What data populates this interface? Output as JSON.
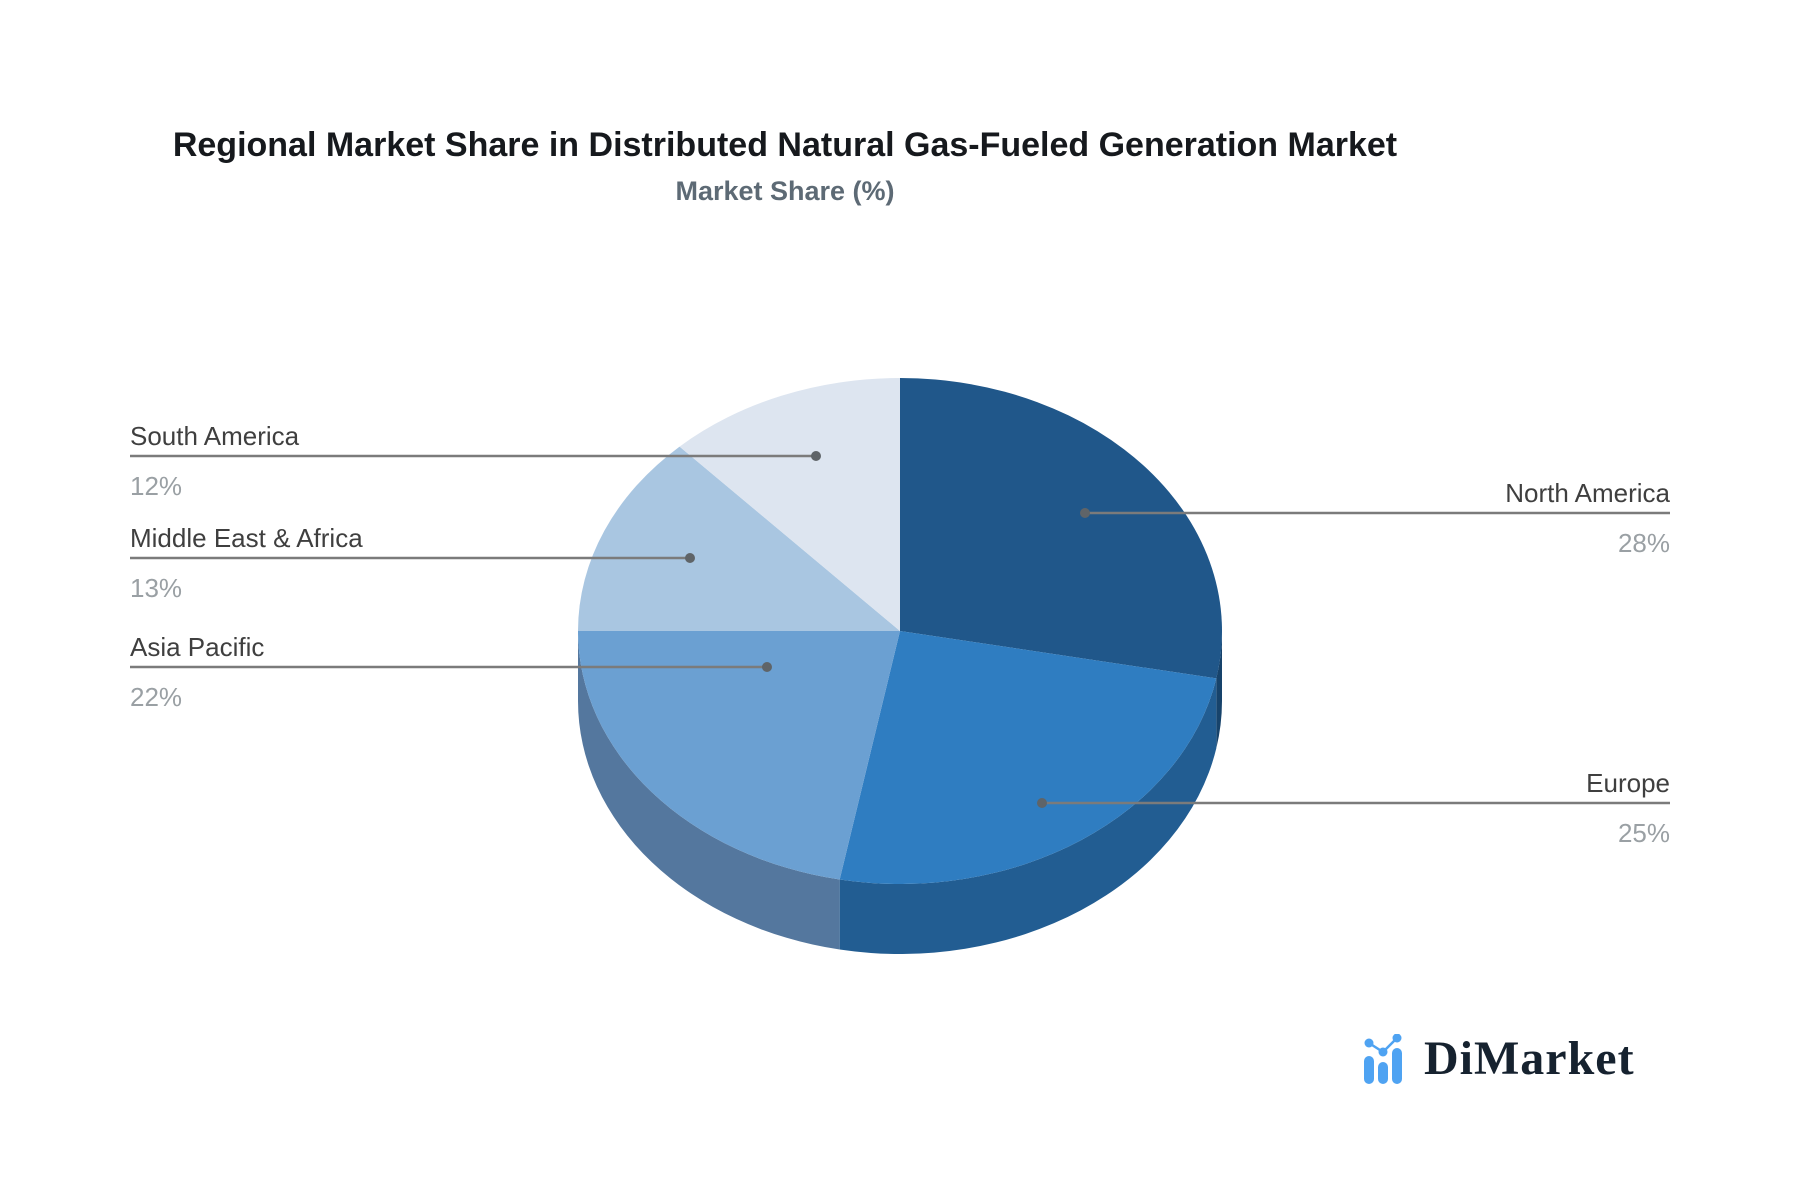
{
  "title": "Regional Market Share in Distributed Natural Gas-Fueled Generation Market",
  "subtitle": "Market Share (%)",
  "logo": {
    "text": "DiMarket"
  },
  "chart_data": {
    "type": "pie",
    "title": "Regional Market Share in Distributed Natural Gas-Fueled Generation Market",
    "subtitle": "Market Share (%)",
    "unit": "%",
    "rotation": "clockwise-from-top",
    "style": "3d-extruded",
    "legend_position": "outside-leader-lines",
    "labels": [
      "North America",
      "Europe",
      "Asia Pacific",
      "Middle East & Africa",
      "South America"
    ],
    "values": [
      28,
      25,
      22,
      13,
      12
    ],
    "pct_labels": [
      "28%",
      "25%",
      "22%",
      "13%",
      "12%"
    ],
    "colors": [
      "#20578A",
      "#2F7DC1",
      "#6BA0D2",
      "#A9C6E1",
      "#DDE5F0"
    ],
    "rim_colors": [
      "#17436B",
      "#225D92",
      "#54779E",
      "#7E94A8",
      "#A5ACB4"
    ],
    "leader_line_color": "#7b7b7b",
    "leader_dot_color": "#5f6468",
    "label_color": "#3f3f3f",
    "pct_color": "#9aa0a4",
    "icon_color": "#4FA3F2"
  }
}
